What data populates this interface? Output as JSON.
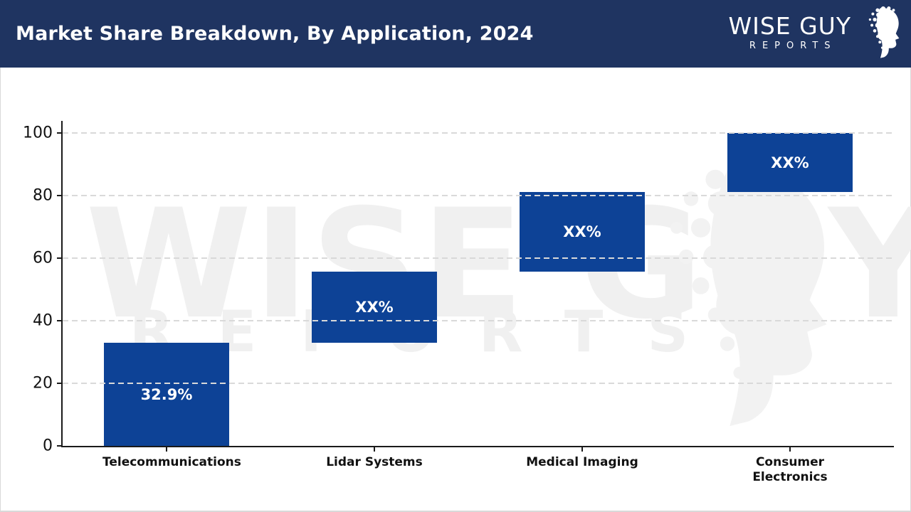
{
  "header": {
    "title": "Market Share Breakdown, By Application, 2024",
    "bg_color": "#1f3461",
    "logo": {
      "line1": "WISE GUY",
      "line2": "REPORTS"
    }
  },
  "watermark": {
    "line1": "WISE GUY",
    "line2": "REPORTS"
  },
  "chart_data": {
    "type": "bar",
    "subtype": "waterfall-floating-bars",
    "title": "Market Share Breakdown, By Application, 2024",
    "xlabel": "",
    "ylabel": "",
    "ylim": [
      0,
      100
    ],
    "yticks": [
      0,
      20,
      40,
      60,
      80,
      100
    ],
    "grid": "horizontal-dashed",
    "legend": "none",
    "bar_color": "#0d4296",
    "bar_label_color": "#ffffff",
    "axis_color": "#1a1a1a",
    "grid_color": "#d9d9d9",
    "categories": [
      "Telecommunications",
      "Lidar Systems",
      "Medical Imaging",
      "Consumer Electronics"
    ],
    "segments": [
      {
        "category": "Telecommunications",
        "start": 0,
        "end": 32.9,
        "label": "32.9%"
      },
      {
        "category": "Lidar Systems",
        "start": 32.9,
        "end": 55.6,
        "label": "XX%"
      },
      {
        "category": "Medical Imaging",
        "start": 55.6,
        "end": 81.1,
        "label": "XX%"
      },
      {
        "category": "Consumer Electronics",
        "start": 81.1,
        "end": 100,
        "label": "XX%"
      }
    ]
  }
}
